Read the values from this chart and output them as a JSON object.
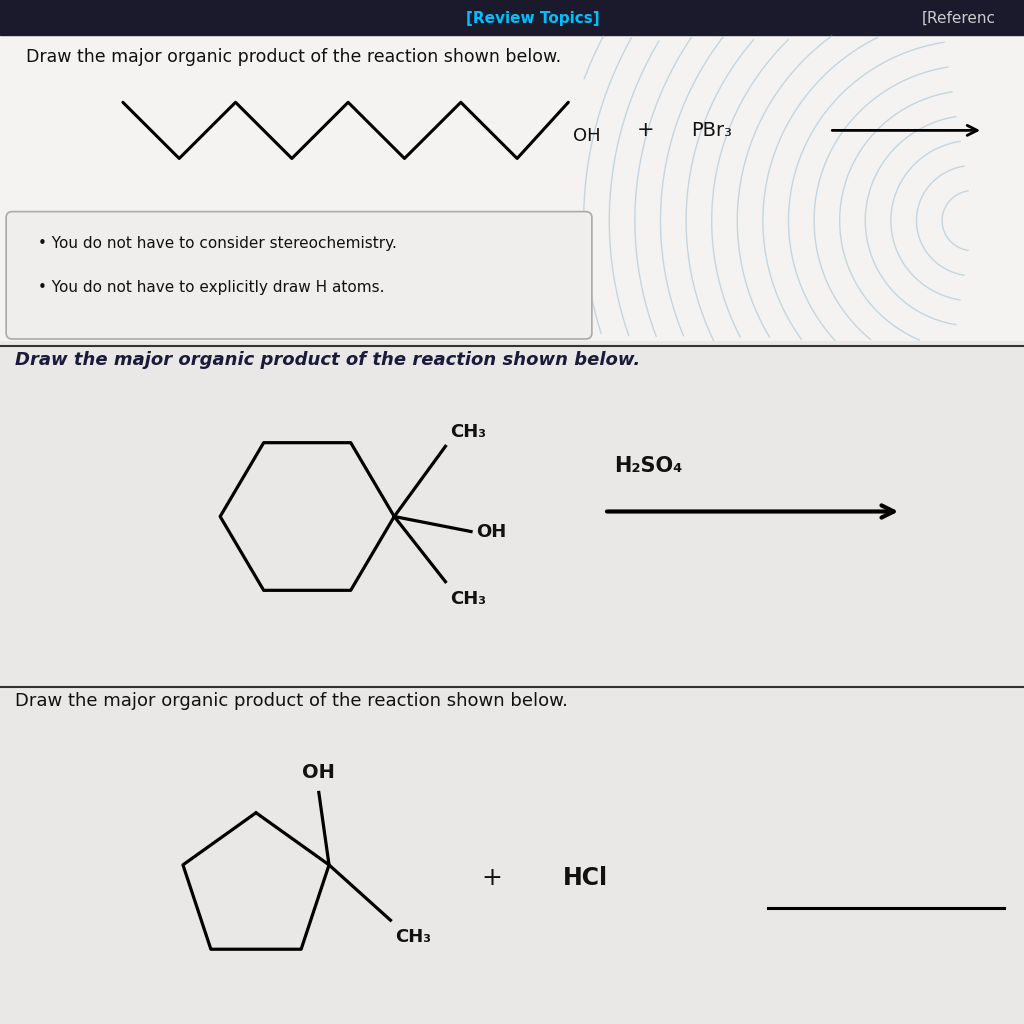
{
  "panel1": {
    "title": "Draw the major organic product of the reaction shown below.",
    "reagent_plus": "+",
    "reagent": "PBr₃",
    "OH_label": "OH",
    "bullet1": "You do not have to consider stereochemistry.",
    "bullet2": "You do not have to explicitly draw H atoms.",
    "review_topics": "[Review Topics]",
    "reference": "[Referenc",
    "bg_color": "#f5f3f1",
    "bar_color": "#1a1a2c"
  },
  "panel2": {
    "title": "Draw the major organic product of the reaction shown below.",
    "reagent": "H₂SO₄",
    "CH3_up": "CH₃",
    "OH_label": "OH",
    "CH3_down": "CH₃",
    "bg_color": "#eae8e6"
  },
  "panel3": {
    "title": "Draw the major organic product of the reaction shown below.",
    "reagent_plus": "+",
    "reagent": "HCl",
    "OH_label": "OH",
    "CH3_label": "CH₃",
    "bg_color": "#eae8e6"
  }
}
